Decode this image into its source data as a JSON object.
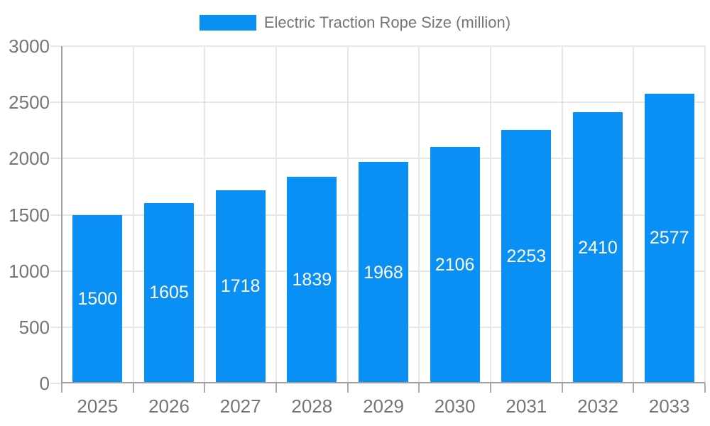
{
  "chart_data": {
    "type": "bar",
    "title": "Electric Traction Rope Size (million)",
    "legend": [
      {
        "label": "Electric Traction Rope Size (million)"
      }
    ],
    "legend_position": "top-center",
    "categories": [
      "2025",
      "2026",
      "2027",
      "2028",
      "2029",
      "2030",
      "2031",
      "2032",
      "2033"
    ],
    "values": [
      1500,
      1605,
      1718,
      1839,
      1968,
      2106,
      2253,
      2410,
      2577
    ],
    "xlabel": "",
    "ylabel": "",
    "ylim": [
      0,
      3000
    ],
    "yticks": [
      0,
      500,
      1000,
      1500,
      2000,
      2500,
      3000
    ],
    "grid": true,
    "value_label_position": "inside-center",
    "colors": {
      "bar": "#0a8ff5",
      "grid": "#e6e6e6",
      "axis": "#9e9e9e",
      "x_tick_mark": "#ababab",
      "tick_text": "#757575",
      "value_label": "#ffffff",
      "background": "#ffffff"
    }
  }
}
